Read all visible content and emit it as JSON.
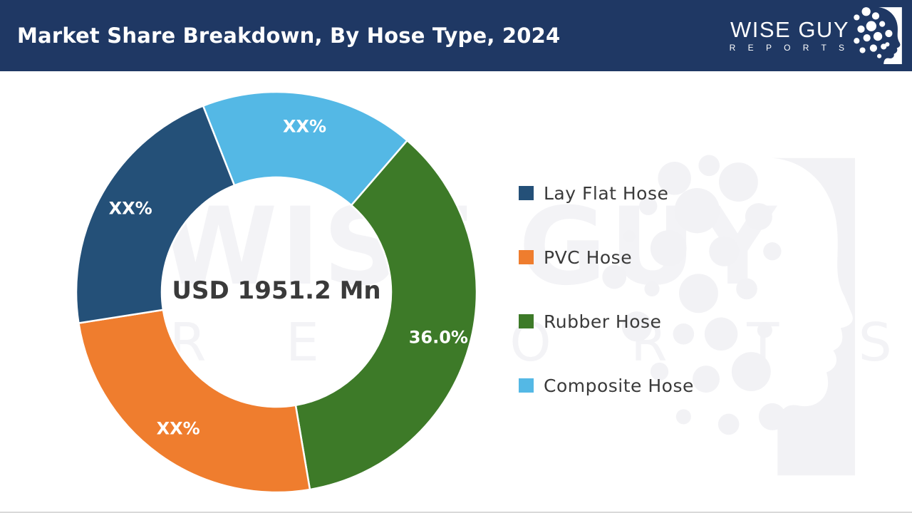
{
  "header": {
    "title": "Market Share Breakdown, By Hose Type, 2024",
    "logo": {
      "line1": "WISE GUY",
      "line2": "R E P O R T S"
    }
  },
  "watermark": {
    "line1": "WISE GUY",
    "line2": "R E P O R T S"
  },
  "colors": {
    "header_background": "#1f3864",
    "title_text": "#ffffff",
    "body_text": "#3a3a3a",
    "watermark": "#f3f3f6",
    "divider": "#d9d9d9"
  },
  "chart_data": {
    "type": "pie",
    "variant": "donut",
    "title": "Market Share Breakdown, By Hose Type, 2024",
    "center_label": "USD 1951.2 Mn",
    "legend_position": "right",
    "start_angle_deg": -21.5,
    "slices": [
      {
        "name": "Composite Hose",
        "display_label": "XX%",
        "sweep_percent": 17.3,
        "color": "#54b8e5"
      },
      {
        "name": "Rubber Hose",
        "display_label": "36.0%",
        "sweep_percent": 36.0,
        "color": "#3d7a28"
      },
      {
        "name": "PVC Hose",
        "display_label": "XX%",
        "sweep_percent": 25.2,
        "color": "#ef7d2e"
      },
      {
        "name": "Lay Flat Hose",
        "display_label": "XX%",
        "sweep_percent": 21.5,
        "color": "#245078"
      }
    ],
    "legend_order": [
      "Lay Flat Hose",
      "PVC Hose",
      "Rubber Hose",
      "Composite Hose"
    ]
  }
}
